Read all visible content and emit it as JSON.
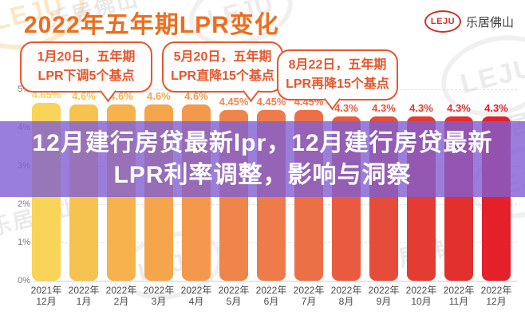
{
  "page": {
    "title": "2022年五年期LPR变化"
  },
  "logo": {
    "badge": "LEJU",
    "brand": "乐居佛山"
  },
  "watermark": {
    "badge": "LEJU",
    "brand": "乐居佛山"
  },
  "callouts": [
    {
      "line1": "1月20日，五年期",
      "line2": "LPR下调5个基点"
    },
    {
      "line1": "5月20日，五年期",
      "line2": "LPR直降15个基点"
    },
    {
      "line1": "8月22日，五年期",
      "line2": "LPR再降15个基点"
    }
  ],
  "overlay": {
    "line1": "12月建行房贷最新lpr，12月建行房贷最新",
    "line2": "LPR利率调整，影响与洞察"
  },
  "chart_data": {
    "type": "bar",
    "title": "2022年五年期LPR变化",
    "categories": [
      "2021年12月",
      "2022年1月",
      "2022年2月",
      "2022年3月",
      "2022年4月",
      "2022年5月",
      "2022年6月",
      "2022年7月",
      "2022年8月",
      "2022年9月",
      "2022年10月",
      "2022年11月",
      "2022年12月"
    ],
    "values": [
      4.65,
      4.6,
      4.6,
      4.6,
      4.6,
      4.45,
      4.45,
      4.45,
      4.3,
      4.3,
      4.3,
      4.3,
      4.3
    ],
    "value_labels": [
      "4.65%",
      "4.6%",
      "4.6%",
      "4.6%",
      "4.6%",
      "4.45%",
      "4.45%",
      "4.45%",
      "4.3%",
      "4.3%",
      "4.3%",
      "4.3%",
      "4.3%"
    ],
    "bar_colors": [
      "#F8D458",
      "#F7C350",
      "#F6B24C",
      "#F5A54B",
      "#F3984C",
      "#F0854B",
      "#EE7B4A",
      "#EC7046",
      "#E85B40",
      "#E64C3A",
      "#E43C33",
      "#E2302E",
      "#E4202B"
    ],
    "xlabel": "",
    "ylabel": "",
    "ylim": [
      0,
      5
    ],
    "yticks": [
      "0%",
      "1%",
      "2%",
      "3%",
      "4%",
      "5%"
    ],
    "grid": true,
    "legend": false,
    "annotations": [
      "1月20日，五年期LPR下调5个基点",
      "5月20日，五年期LPR直降15个基点",
      "8月22日，五年期LPR再降15个基点"
    ]
  }
}
